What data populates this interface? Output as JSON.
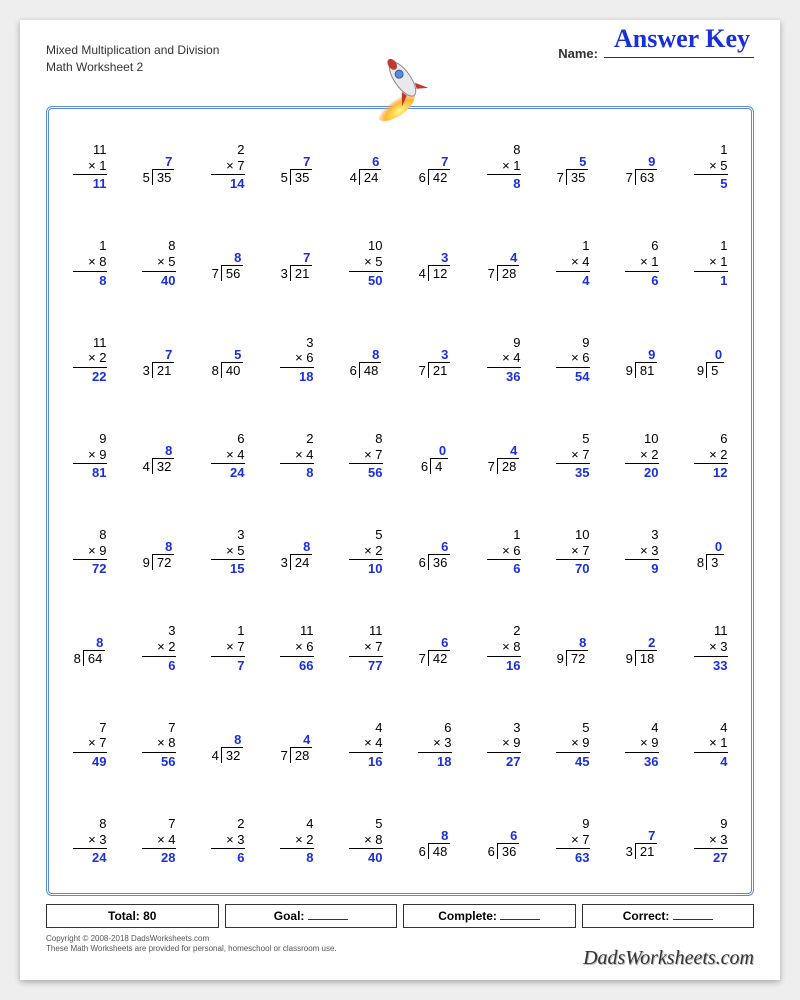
{
  "header": {
    "title_line1": "Mixed Multiplication and Division",
    "title_line2": "Math Worksheet 2",
    "name_label": "Name:",
    "answer_key": "Answer Key"
  },
  "answer_color": "#1a2fdc",
  "border_color": "#5a8bd6",
  "footer": {
    "total_label": "Total:",
    "total_value": "80",
    "goal_label": "Goal:",
    "complete_label": "Complete:",
    "correct_label": "Correct:"
  },
  "copyright": {
    "line1": "Copyright © 2008-2018 DadsWorksheets.com",
    "line2": "These Math Worksheets are provided for personal, homeschool or classroom use."
  },
  "brand": "DadsWorksheets.com",
  "problems": [
    [
      {
        "type": "mult",
        "a": 11,
        "b": 1,
        "ans": 11
      },
      {
        "type": "div",
        "divisor": 5,
        "dividend": 35,
        "quot": 7
      },
      {
        "type": "mult",
        "a": 2,
        "b": 7,
        "ans": 14
      },
      {
        "type": "div",
        "divisor": 5,
        "dividend": 35,
        "quot": 7
      },
      {
        "type": "div",
        "divisor": 4,
        "dividend": 24,
        "quot": 6
      },
      {
        "type": "div",
        "divisor": 6,
        "dividend": 42,
        "quot": 7
      },
      {
        "type": "mult",
        "a": 8,
        "b": 1,
        "ans": 8
      },
      {
        "type": "div",
        "divisor": 7,
        "dividend": 35,
        "quot": 5
      },
      {
        "type": "div",
        "divisor": 7,
        "dividend": 63,
        "quot": 9
      },
      {
        "type": "mult",
        "a": 1,
        "b": 5,
        "ans": 5
      }
    ],
    [
      {
        "type": "mult",
        "a": 1,
        "b": 8,
        "ans": 8
      },
      {
        "type": "mult",
        "a": 8,
        "b": 5,
        "ans": 40
      },
      {
        "type": "div",
        "divisor": 7,
        "dividend": 56,
        "quot": 8
      },
      {
        "type": "div",
        "divisor": 3,
        "dividend": 21,
        "quot": 7
      },
      {
        "type": "mult",
        "a": 10,
        "b": 5,
        "ans": 50
      },
      {
        "type": "div",
        "divisor": 4,
        "dividend": 12,
        "quot": 3
      },
      {
        "type": "div",
        "divisor": 7,
        "dividend": 28,
        "quot": 4
      },
      {
        "type": "mult",
        "a": 1,
        "b": 4,
        "ans": 4
      },
      {
        "type": "mult",
        "a": 6,
        "b": 1,
        "ans": 6
      },
      {
        "type": "mult",
        "a": 1,
        "b": 1,
        "ans": 1
      }
    ],
    [
      {
        "type": "mult",
        "a": 11,
        "b": 2,
        "ans": 22
      },
      {
        "type": "div",
        "divisor": 3,
        "dividend": 21,
        "quot": 7
      },
      {
        "type": "div",
        "divisor": 8,
        "dividend": 40,
        "quot": 5
      },
      {
        "type": "mult",
        "a": 3,
        "b": 6,
        "ans": 18
      },
      {
        "type": "div",
        "divisor": 6,
        "dividend": 48,
        "quot": 8
      },
      {
        "type": "div",
        "divisor": 7,
        "dividend": 21,
        "quot": 3
      },
      {
        "type": "mult",
        "a": 9,
        "b": 4,
        "ans": 36
      },
      {
        "type": "mult",
        "a": 9,
        "b": 6,
        "ans": 54
      },
      {
        "type": "div",
        "divisor": 9,
        "dividend": 81,
        "quot": 9
      },
      {
        "type": "div",
        "divisor": 9,
        "dividend": 5,
        "quot": 0
      }
    ],
    [
      {
        "type": "mult",
        "a": 9,
        "b": 9,
        "ans": 81
      },
      {
        "type": "div",
        "divisor": 4,
        "dividend": 32,
        "quot": 8
      },
      {
        "type": "mult",
        "a": 6,
        "b": 4,
        "ans": 24
      },
      {
        "type": "mult",
        "a": 2,
        "b": 4,
        "ans": 8
      },
      {
        "type": "mult",
        "a": 8,
        "b": 7,
        "ans": 56
      },
      {
        "type": "div",
        "divisor": 6,
        "dividend": 4,
        "quot": 0
      },
      {
        "type": "div",
        "divisor": 7,
        "dividend": 28,
        "quot": 4
      },
      {
        "type": "mult",
        "a": 5,
        "b": 7,
        "ans": 35
      },
      {
        "type": "mult",
        "a": 10,
        "b": 2,
        "ans": 20
      },
      {
        "type": "mult",
        "a": 6,
        "b": 2,
        "ans": 12
      }
    ],
    [
      {
        "type": "mult",
        "a": 8,
        "b": 9,
        "ans": 72
      },
      {
        "type": "div",
        "divisor": 9,
        "dividend": 72,
        "quot": 8
      },
      {
        "type": "mult",
        "a": 3,
        "b": 5,
        "ans": 15
      },
      {
        "type": "div",
        "divisor": 3,
        "dividend": 24,
        "quot": 8
      },
      {
        "type": "mult",
        "a": 5,
        "b": 2,
        "ans": 10
      },
      {
        "type": "div",
        "divisor": 6,
        "dividend": 36,
        "quot": 6
      },
      {
        "type": "mult",
        "a": 1,
        "b": 6,
        "ans": 6
      },
      {
        "type": "mult",
        "a": 10,
        "b": 7,
        "ans": 70
      },
      {
        "type": "mult",
        "a": 3,
        "b": 3,
        "ans": 9
      },
      {
        "type": "div",
        "divisor": 8,
        "dividend": 3,
        "quot": 0
      }
    ],
    [
      {
        "type": "div",
        "divisor": 8,
        "dividend": 64,
        "quot": 8
      },
      {
        "type": "mult",
        "a": 3,
        "b": 2,
        "ans": 6
      },
      {
        "type": "mult",
        "a": 1,
        "b": 7,
        "ans": 7
      },
      {
        "type": "mult",
        "a": 11,
        "b": 6,
        "ans": 66
      },
      {
        "type": "mult",
        "a": 11,
        "b": 7,
        "ans": 77
      },
      {
        "type": "div",
        "divisor": 7,
        "dividend": 42,
        "quot": 6
      },
      {
        "type": "mult",
        "a": 2,
        "b": 8,
        "ans": 16
      },
      {
        "type": "div",
        "divisor": 9,
        "dividend": 72,
        "quot": 8
      },
      {
        "type": "div",
        "divisor": 9,
        "dividend": 18,
        "quot": 2
      },
      {
        "type": "mult",
        "a": 11,
        "b": 3,
        "ans": 33
      }
    ],
    [
      {
        "type": "mult",
        "a": 7,
        "b": 7,
        "ans": 49
      },
      {
        "type": "mult",
        "a": 7,
        "b": 8,
        "ans": 56
      },
      {
        "type": "div",
        "divisor": 4,
        "dividend": 32,
        "quot": 8
      },
      {
        "type": "div",
        "divisor": 7,
        "dividend": 28,
        "quot": 4
      },
      {
        "type": "mult",
        "a": 4,
        "b": 4,
        "ans": 16
      },
      {
        "type": "mult",
        "a": 6,
        "b": 3,
        "ans": 18
      },
      {
        "type": "mult",
        "a": 3,
        "b": 9,
        "ans": 27
      },
      {
        "type": "mult",
        "a": 5,
        "b": 9,
        "ans": 45
      },
      {
        "type": "mult",
        "a": 4,
        "b": 9,
        "ans": 36
      },
      {
        "type": "mult",
        "a": 4,
        "b": 1,
        "ans": 4
      }
    ],
    [
      {
        "type": "mult",
        "a": 8,
        "b": 3,
        "ans": 24
      },
      {
        "type": "mult",
        "a": 7,
        "b": 4,
        "ans": 28
      },
      {
        "type": "mult",
        "a": 2,
        "b": 3,
        "ans": 6
      },
      {
        "type": "mult",
        "a": 4,
        "b": 2,
        "ans": 8
      },
      {
        "type": "mult",
        "a": 5,
        "b": 8,
        "ans": 40
      },
      {
        "type": "div",
        "divisor": 6,
        "dividend": 48,
        "quot": 8
      },
      {
        "type": "div",
        "divisor": 6,
        "dividend": 36,
        "quot": 6
      },
      {
        "type": "mult",
        "a": 9,
        "b": 7,
        "ans": 63
      },
      {
        "type": "div",
        "divisor": 3,
        "dividend": 21,
        "quot": 7
      },
      {
        "type": "mult",
        "a": 9,
        "b": 3,
        "ans": 27
      }
    ]
  ]
}
